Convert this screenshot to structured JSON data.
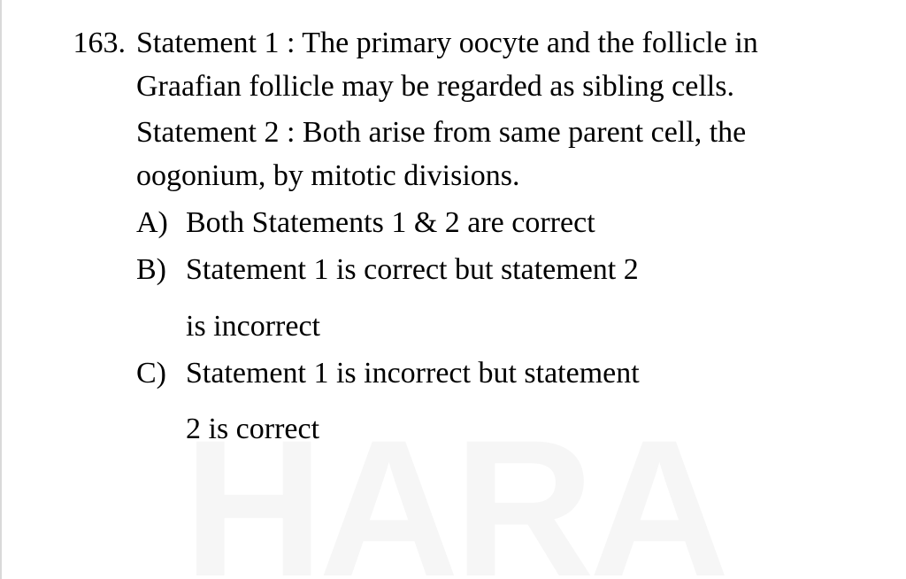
{
  "colors": {
    "background": "#ffffff",
    "text": "#000000",
    "left_border": "#d9d9d9",
    "watermark": "rgba(0,0,0,0.035)"
  },
  "typography": {
    "body_font": "Georgia, 'Times New Roman', Times, serif",
    "body_fontsize_pt": 26,
    "line_height": 1.45,
    "watermark_font": "Arial, Helvetica, sans-serif",
    "watermark_fontsize_pt": 165,
    "watermark_weight": "900"
  },
  "question": {
    "number": "163.",
    "statement1": "Statement 1 : The primary oocyte and the follicle in Graafian follicle may be regarded as sibling cells.",
    "statement2": "Statement 2 : Both arise from same parent cell, the oogonium, by mitotic divisions.",
    "options": [
      {
        "label": "A)",
        "text_line1": "Both Statements 1 & 2 are correct",
        "text_line2": ""
      },
      {
        "label": "B)",
        "text_line1": "Statement 1 is correct but statement 2",
        "text_line2": "is incorrect"
      },
      {
        "label": "C)",
        "text_line1": "Statement 1 is incorrect but statement",
        "text_line2": "2 is correct"
      }
    ]
  },
  "watermark": "HARA"
}
